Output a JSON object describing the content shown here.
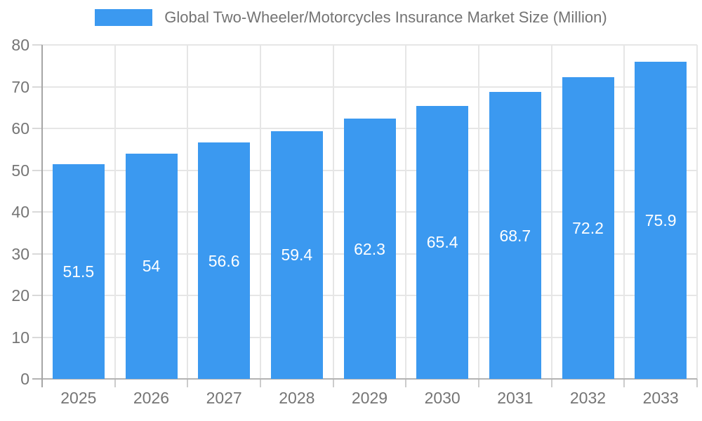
{
  "legend": {
    "items": [
      {
        "label": "Global Two-Wheeler/Motorcycles Insurance Market Size (Million)",
        "color": "#3B99F0"
      }
    ]
  },
  "chart_data": {
    "type": "bar",
    "title": "Global Two-Wheeler/Motorcycles Insurance Market Size (Million)",
    "categories": [
      "2025",
      "2026",
      "2027",
      "2028",
      "2029",
      "2030",
      "2031",
      "2032",
      "2033"
    ],
    "values": [
      51.5,
      54,
      56.6,
      59.4,
      62.3,
      65.4,
      68.7,
      72.2,
      75.9
    ],
    "value_labels": [
      "51.5",
      "54",
      "56.6",
      "59.4",
      "62.3",
      "65.4",
      "68.7",
      "72.2",
      "75.9"
    ],
    "xlabel": "",
    "ylabel": "",
    "ylim": [
      0,
      80
    ],
    "yticks": [
      0,
      10,
      20,
      30,
      40,
      50,
      60,
      70,
      80
    ],
    "grid": true,
    "legend_position": "top",
    "colors": {
      "bar": "#3B99F0",
      "axis_text": "#757575",
      "grid": "#e6e6e6",
      "x_axis_line": "#b3b3b3",
      "y_axis_line": "#a6a6a6",
      "value_label": "#ffffff"
    }
  }
}
